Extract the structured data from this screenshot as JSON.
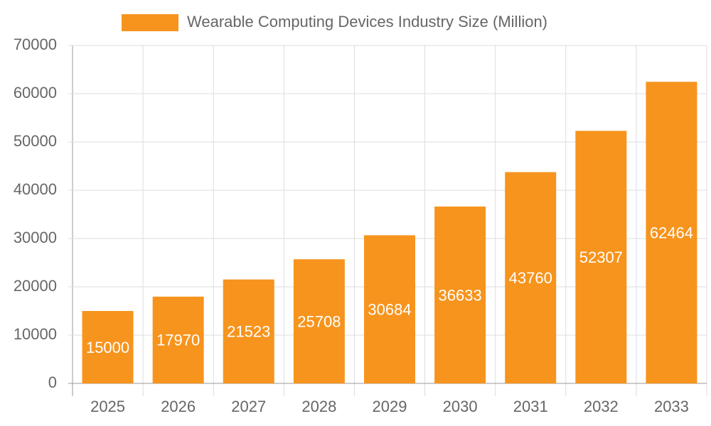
{
  "chart_data": {
    "type": "bar",
    "legend_label": "Wearable Computing Devices Industry Size (Million)",
    "categories": [
      "2025",
      "2026",
      "2027",
      "2028",
      "2029",
      "2030",
      "2031",
      "2032",
      "2033"
    ],
    "values": [
      15000,
      17970,
      21523,
      25708,
      30684,
      36633,
      43760,
      52307,
      62464
    ],
    "color": "#f7941d",
    "ylim": [
      0,
      70000
    ],
    "yticks": [
      0,
      10000,
      20000,
      30000,
      40000,
      50000,
      60000,
      70000
    ],
    "grid": true,
    "legend_position": "top"
  }
}
